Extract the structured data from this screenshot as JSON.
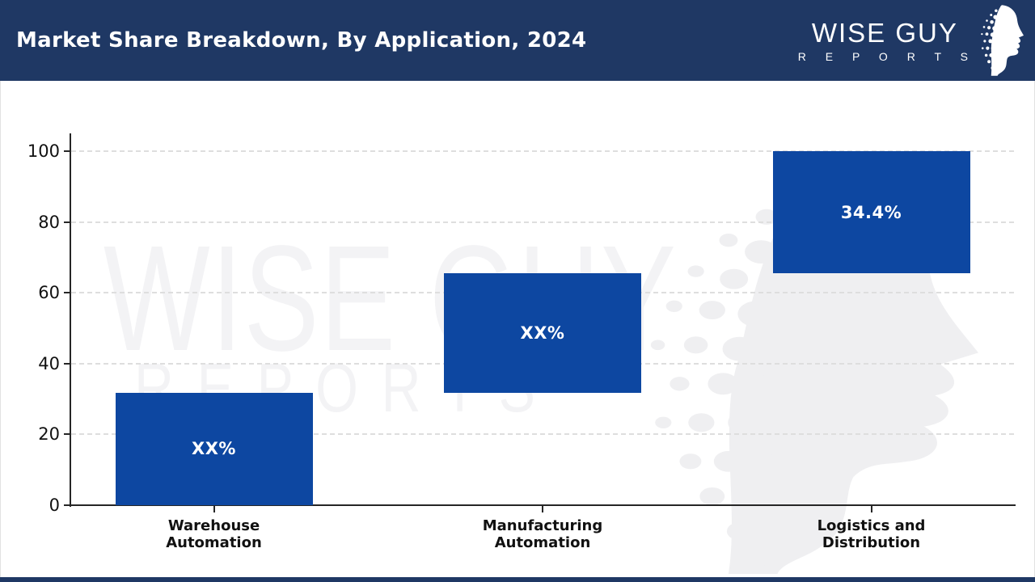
{
  "header": {
    "title": "Market Share Breakdown, By Application, 2024",
    "logo": {
      "wordmark": "WISE GUY",
      "subtext": "R E P O R T S"
    }
  },
  "watermark": {
    "wordmark": "WISE GUY",
    "subtext": "R E P O R T S"
  },
  "colors": {
    "header_bg": "#1f3864",
    "bar": "#0d47a1",
    "bar_label_text": "#ffffff",
    "axis": "#262626",
    "tick_label": "#111111",
    "gridline": "#dedede",
    "watermark_text": "#f3f3f5",
    "watermark_face": "#efeff1",
    "footer_bar": "#1f3864"
  },
  "chart_data": {
    "type": "bar",
    "variant": "waterfall",
    "title": "Market Share Breakdown, By Application, 2024",
    "xlabel": "",
    "ylabel": "",
    "categories": [
      [
        "Warehouse",
        "Automation"
      ],
      [
        "Manufacturing",
        "Automation"
      ],
      [
        "Logistics and",
        "Distribution"
      ]
    ],
    "segments": [
      {
        "category": "Warehouse Automation",
        "start": 0,
        "end": 31.8,
        "label": "XX%"
      },
      {
        "category": "Manufacturing Automation",
        "start": 31.8,
        "end": 65.6,
        "label": "XX%"
      },
      {
        "category": "Logistics and Distribution",
        "start": 65.6,
        "end": 100,
        "label": "34.4%"
      }
    ],
    "yticks": [
      0,
      20,
      40,
      60,
      80,
      100
    ],
    "ylim": [
      0,
      105.1
    ],
    "grid": "horizontal-dashed",
    "legend": "none"
  }
}
